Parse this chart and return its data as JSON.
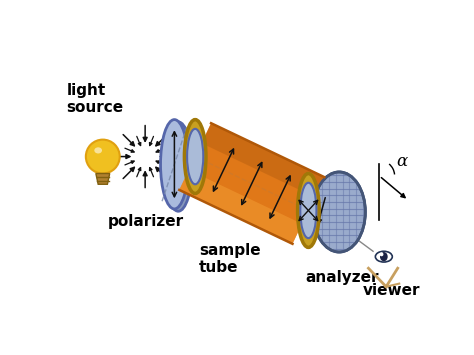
{
  "bg_color": "#ffffff",
  "labels": {
    "light_source": "light\nsource",
    "polarizer": "polarizer",
    "sample_tube": "sample\ntube",
    "analyzer": "analyzer",
    "viewer": "viewer",
    "alpha": "α"
  },
  "colors": {
    "bulb_yellow": "#f0c020",
    "bulb_amber": "#e0a010",
    "bulb_stem": "#b08030",
    "polarizer_face": "#aabbdd",
    "polarizer_edge": "#5566aa",
    "tube_orange": "#e07818",
    "tube_dark": "#b05808",
    "tube_gold_rim": "#c8a020",
    "tube_gold_edge": "#a07808",
    "tube_highlight": "#f09830",
    "tube_shadow": "#b86010",
    "end_disk_face": "#aabbd8",
    "end_disk_edge": "#5566aa",
    "analyzer_face": "#9aabcc",
    "analyzer_edge": "#445577",
    "analyzer_hatch": "#6677aa",
    "arrow_color": "#111111",
    "text_color": "#000000"
  },
  "figsize": [
    4.74,
    3.55
  ],
  "dpi": 100
}
